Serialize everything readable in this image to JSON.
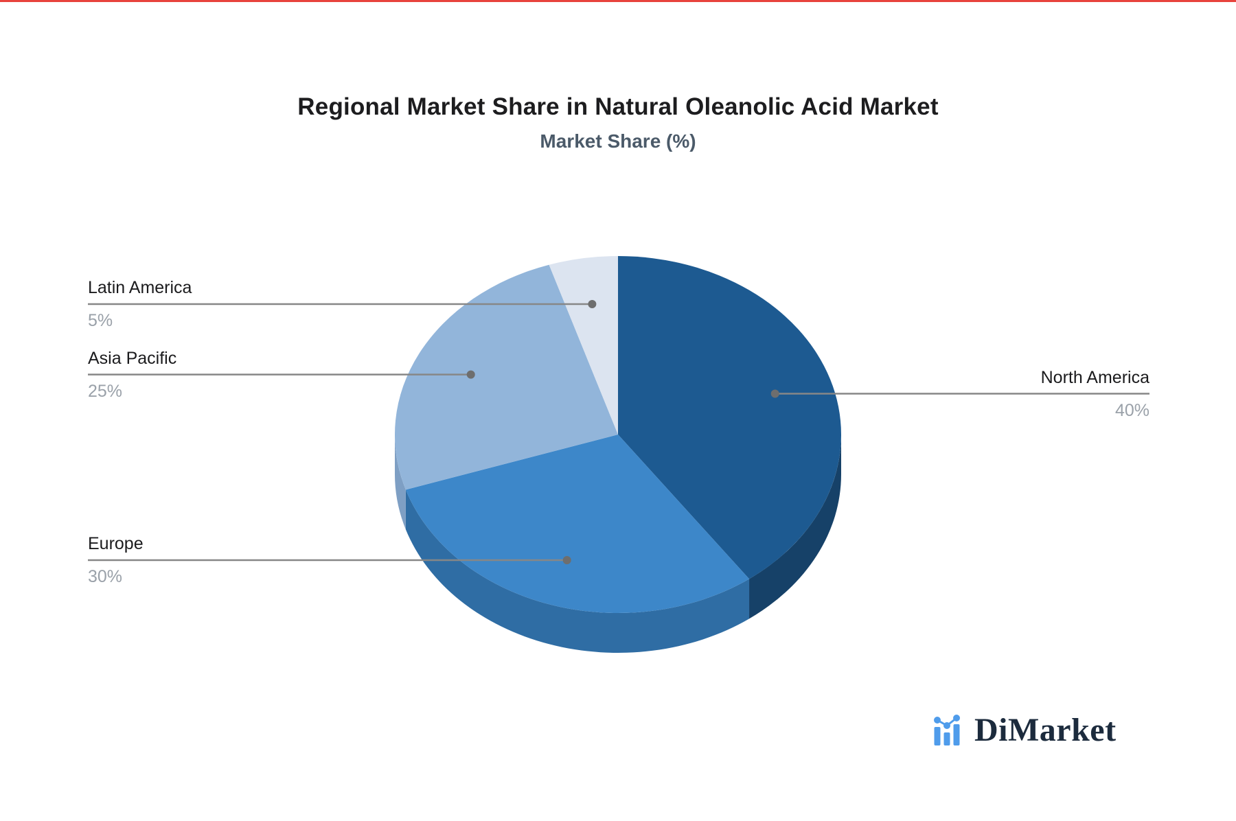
{
  "page": {
    "title": "Regional Market Share in Natural Oleanolic Acid Market",
    "subtitle": "Market Share (%)"
  },
  "chart_data": {
    "type": "pie",
    "style": "3d",
    "title": "Regional Market Share in Natural Oleanolic Acid Market",
    "subtitle": "Market Share (%)",
    "unit": "%",
    "start_angle_deg": 0,
    "direction": "clockwise",
    "labels_position": "outside-leader-lines",
    "legend": "none",
    "slices": [
      {
        "label": "North America",
        "value": 40,
        "display": "40%",
        "color": "#1d5a91",
        "side_color": "#164168"
      },
      {
        "label": "Europe",
        "value": 30,
        "display": "30%",
        "color": "#3d87c9",
        "side_color": "#2f6da4"
      },
      {
        "label": "Asia Pacific",
        "value": 25,
        "display": "25%",
        "color": "#92b5da",
        "side_color": "#7e9fc4"
      },
      {
        "label": "Latin America",
        "value": 5,
        "display": "5%",
        "color": "#dce4f0",
        "side_color": "#c9d2e2"
      }
    ]
  },
  "branding": {
    "name": "DiMarket",
    "icon": "bar-chart-sparkline-icon",
    "icon_color": "#4f9ceb",
    "text_color": "#1c2b3d"
  },
  "accents": {
    "top_edge_color": "#e8433d",
    "leader_line_color": "#878787",
    "leader_dot_color": "#6e6e6e",
    "value_text_color": "#9aa1a9",
    "label_text_color": "#1b1b1d"
  }
}
